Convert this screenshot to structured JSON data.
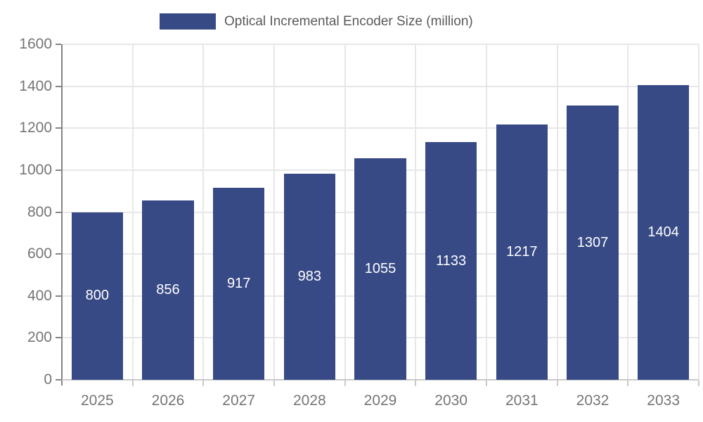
{
  "legend": {
    "label": "Optical Incremental Encoder Size (million)"
  },
  "colors": {
    "bar": "#384A85",
    "grid": "#e7e7e7",
    "axis_dark": "#848484",
    "axis_light": "#c9c9c9",
    "tick_label": "#757575",
    "legend_text": "#595959",
    "value_label": "#ffffff"
  },
  "chart_data": {
    "type": "bar",
    "title": "Optical Incremental Encoder Size (million)",
    "categories": [
      "2025",
      "2026",
      "2027",
      "2028",
      "2029",
      "2030",
      "2031",
      "2032",
      "2033"
    ],
    "values": [
      800,
      856,
      917,
      983,
      1055,
      1133,
      1217,
      1307,
      1404
    ],
    "xlabel": "",
    "ylabel": "",
    "ylim": [
      0,
      1600
    ],
    "yticks": [
      0,
      200,
      400,
      600,
      800,
      1000,
      1200,
      1400,
      1600
    ],
    "grid": true,
    "legend_position": "top-center",
    "value_labels": "inside-center"
  }
}
